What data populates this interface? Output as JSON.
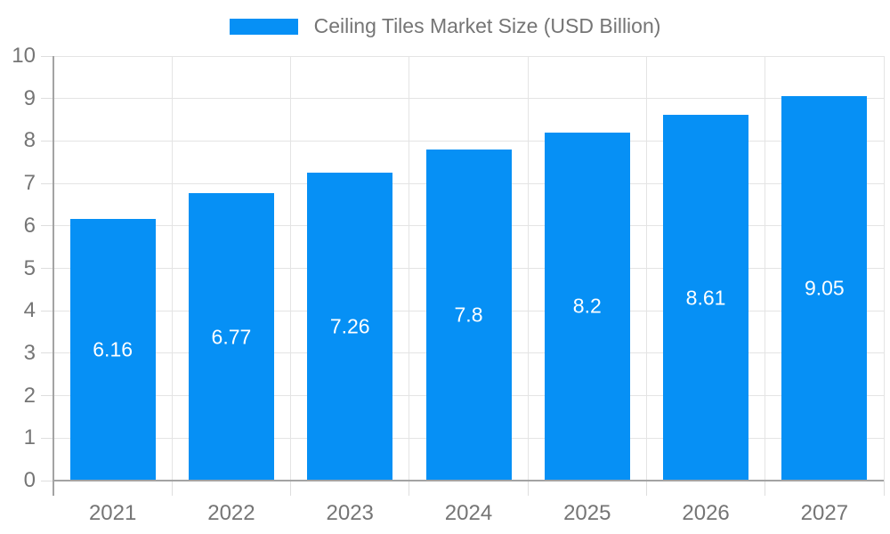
{
  "legend": {
    "label": "Ceiling Tiles Market Size (USD Billion)"
  },
  "colors": {
    "bar": "#0690f5",
    "bar_label": "#ffffff",
    "axis_label": "#757575",
    "gridline": "#e4e4e4",
    "axis_line": "#a3a3a3",
    "background": "#ffffff"
  },
  "chart_data": {
    "type": "bar",
    "title": "Ceiling Tiles Market Size (USD Billion)",
    "categories": [
      "2021",
      "2022",
      "2023",
      "2024",
      "2025",
      "2026",
      "2027"
    ],
    "values": [
      6.16,
      6.77,
      7.26,
      7.8,
      8.2,
      8.61,
      9.05
    ],
    "value_labels": [
      "6.16",
      "6.77",
      "7.26",
      "7.8",
      "8.2",
      "8.61",
      "9.05"
    ],
    "xlabel": "",
    "ylabel": "",
    "ylim": [
      0,
      10
    ],
    "yticks": [
      "0",
      "1",
      "2",
      "3",
      "4",
      "5",
      "6",
      "7",
      "8",
      "9",
      "10"
    ],
    "grid": true,
    "legend_position": "top"
  }
}
